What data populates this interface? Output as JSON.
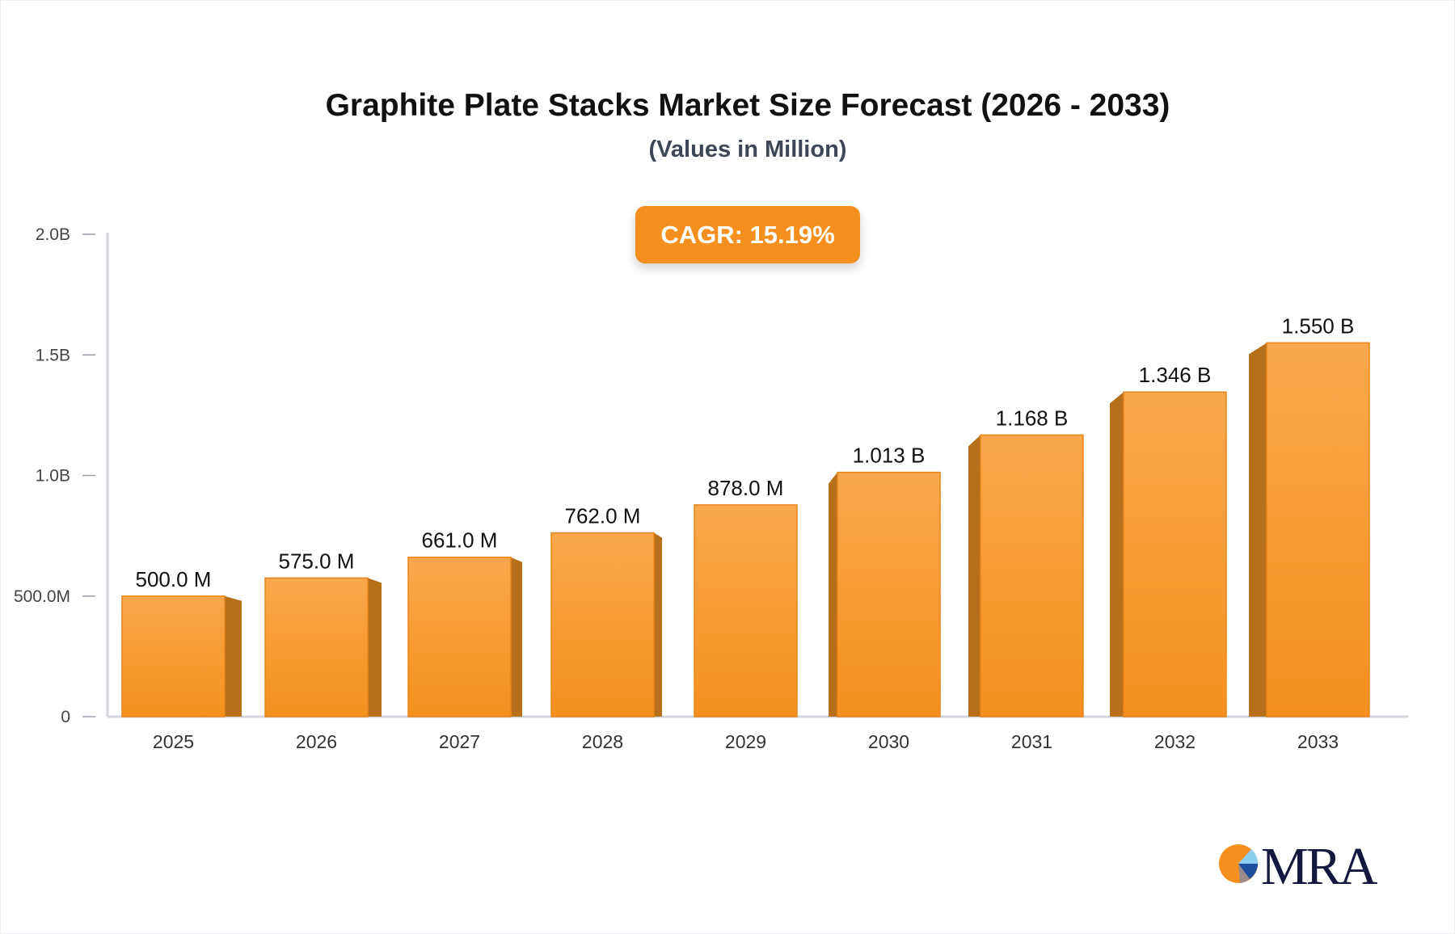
{
  "chart_data": {
    "type": "bar",
    "title": "Graphite Plate Stacks Market Size Forecast (2026 - 2033)",
    "subtitle": "(Values in Million)",
    "annotation": "CAGR: 15.19%",
    "categories": [
      "2025",
      "2026",
      "2027",
      "2028",
      "2029",
      "2030",
      "2031",
      "2032",
      "2033"
    ],
    "values": [
      500.0,
      575.0,
      661.0,
      762.0,
      878.0,
      1013,
      1168,
      1346,
      1550
    ],
    "data_labels": [
      "500.0 M",
      "575.0 M",
      "661.0 M",
      "762.0 M",
      "878.0 M",
      "1.013 B",
      "1.168 B",
      "1.346 B",
      "1.550 B"
    ],
    "ylim": [
      0,
      2000
    ],
    "yticks": [
      0,
      500,
      1000,
      1500,
      2000
    ],
    "ytick_labels": [
      "0",
      "500.0M",
      "1.0B",
      "1.5B",
      "2.0B"
    ],
    "xlabel": "",
    "ylabel": "",
    "grid": false,
    "colors": {
      "bar_front": "#f5901e",
      "bar_side": "#b86f1a",
      "cagr_badge": "#f5901e"
    }
  },
  "logo": {
    "text": "MRA"
  }
}
